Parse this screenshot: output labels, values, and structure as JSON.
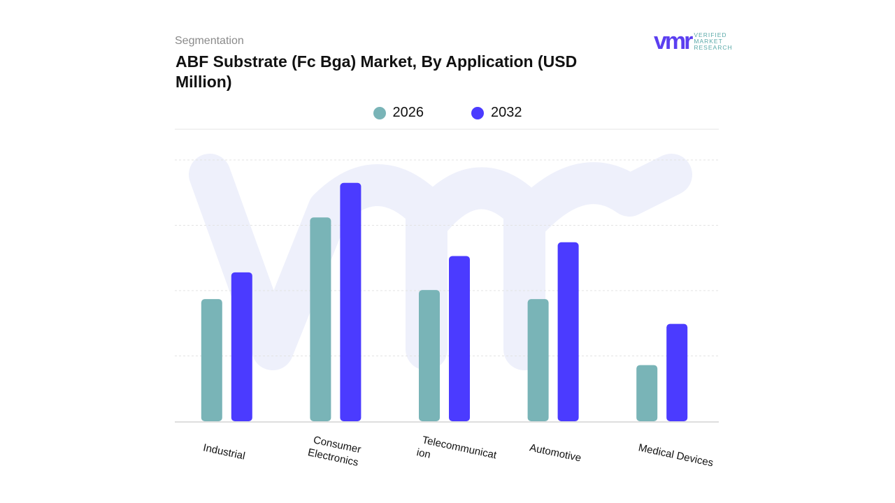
{
  "header": {
    "eyebrow": "Segmentation",
    "title": "ABF Substrate (Fc Bga) Market, By Application (USD Million)"
  },
  "logo": {
    "mark": "vmr",
    "line1": "VERIFIED",
    "line2": "MARKET",
    "line3": "RESEARCH"
  },
  "colors": {
    "2026": "#79b4b7",
    "2032": "#4b3bff"
  },
  "chart_data": {
    "type": "bar",
    "title": "ABF Substrate (Fc Bga) Market, By Application (USD Million)",
    "categories": [
      "Industrial",
      "Consumer Electronics",
      "Telecommunication",
      "Automotive",
      "Medical Devices"
    ],
    "category_label_lines": [
      [
        "Industrial"
      ],
      [
        "Consumer",
        "Electronics"
      ],
      [
        "Telecommunicat",
        "ion"
      ],
      [
        "Automotive"
      ],
      [
        "Medical Devices"
      ]
    ],
    "series": [
      {
        "name": "2026",
        "values": [
          1.87,
          3.12,
          2.01,
          1.87,
          0.86
        ]
      },
      {
        "name": "2032",
        "values": [
          2.28,
          3.65,
          2.53,
          2.74,
          1.49
        ]
      }
    ],
    "ylim": [
      0,
      4
    ],
    "y_ticks_shown": false,
    "grid": true,
    "legend": "top-center",
    "note_values": "relative (no axis values printed)"
  }
}
